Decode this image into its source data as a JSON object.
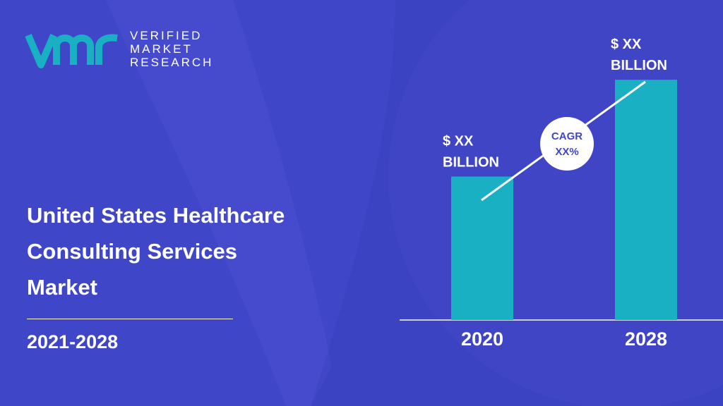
{
  "brand": {
    "line1": "VERIFIED",
    "line2": "MARKET",
    "line3": "RESEARCH"
  },
  "title": {
    "line1": "United States Healthcare",
    "line2": "Consulting Services",
    "line3": "Market"
  },
  "period": "2021-2028",
  "colors": {
    "background": "#3f46c8",
    "bar": "#1ab0c4",
    "text": "#ffffff",
    "cagr_text": "#3f46c8"
  },
  "chart_data": {
    "type": "bar",
    "categories": [
      "2020",
      "2028"
    ],
    "values": [
      43,
      72
    ],
    "ylim": [
      0,
      75
    ],
    "grid": false,
    "data_labels": [
      {
        "line1": "$ XX",
        "line2": "BILLION"
      },
      {
        "line1": "$ XX",
        "line2": "BILLION"
      }
    ],
    "annotation": {
      "line1": "CAGR",
      "line2": "XX%"
    }
  }
}
